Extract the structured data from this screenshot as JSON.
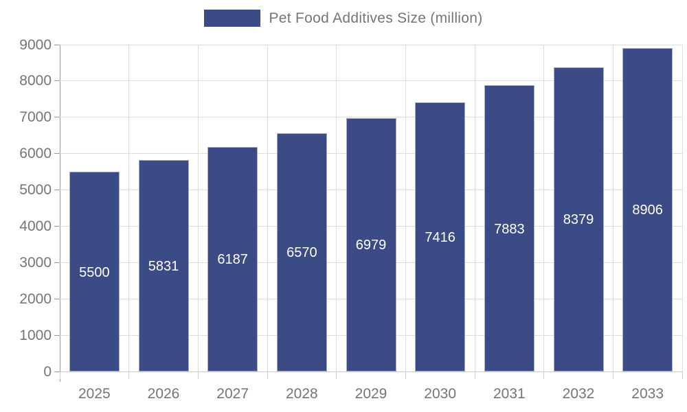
{
  "legend": {
    "label": "Pet Food Additives Size (million)",
    "swatch_color": "#3A4B85"
  },
  "chart_data": {
    "type": "bar",
    "title": "Pet Food Additives Size (million)",
    "categories": [
      "2025",
      "2026",
      "2027",
      "2028",
      "2029",
      "2030",
      "2031",
      "2032",
      "2033"
    ],
    "values": [
      5500,
      5831,
      6187,
      6570,
      6979,
      7416,
      7883,
      8379,
      8906
    ],
    "value_labels": [
      "5500",
      "5831",
      "6187",
      "6570",
      "6979",
      "7416",
      "7883",
      "8379",
      "8906"
    ],
    "xlabel": "",
    "ylabel": "",
    "ylim": [
      0,
      9000
    ],
    "yticks": [
      0,
      1000,
      2000,
      3000,
      4000,
      5000,
      6000,
      7000,
      8000,
      9000
    ],
    "ytick_labels": [
      "0",
      "1000",
      "2000",
      "3000",
      "4000",
      "5000",
      "6000",
      "7000",
      "8000",
      "9000"
    ],
    "grid": true,
    "legend_position": "top-center"
  },
  "colors": {
    "bar": "#3A4B85",
    "grid": "#dddddd",
    "axis_line": "#999999",
    "tick_label": "#757575",
    "value_label": "#ffffff",
    "legend_text": "#757575",
    "background": "#ffffff"
  }
}
